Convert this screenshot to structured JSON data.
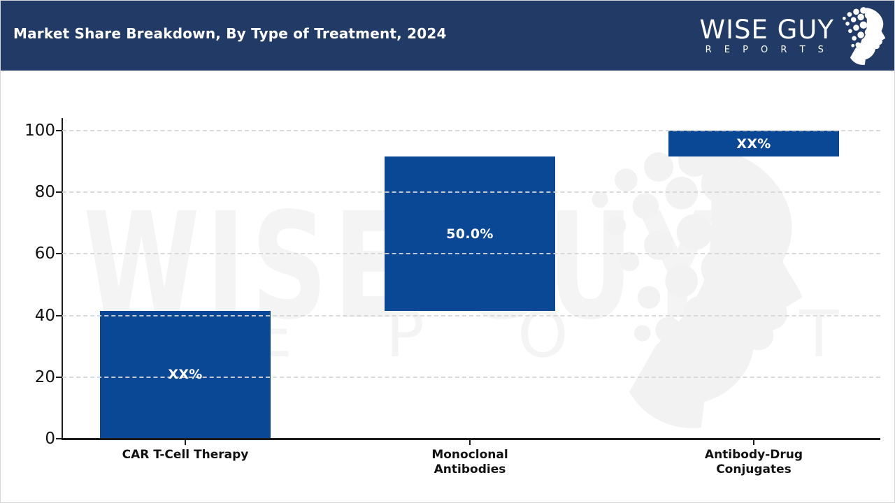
{
  "header": {
    "title": "Market Share Breakdown, By Type of Treatment, 2024",
    "background": "#213a66",
    "logo": {
      "name": "Wise Guy Reports",
      "line1": "WISE GUY",
      "line2": "R E P O R T S"
    }
  },
  "watermark": {
    "line1": "WISE GUY",
    "line2": "R E P O R T S"
  },
  "chart_data": {
    "type": "bar",
    "subtype": "waterfall",
    "title": "Market Share Breakdown, By Type of Treatment, 2024",
    "unit": "percent market share",
    "categories": [
      "CAR T-Cell Therapy",
      "Monoclonal Antibodies",
      "Antibody-Drug Conjugates"
    ],
    "category_label_lines": [
      [
        "CAR T-Cell Therapy"
      ],
      [
        "Monoclonal",
        "Antibodies"
      ],
      [
        "Antibody-Drug",
        "Conjugates"
      ]
    ],
    "segments": [
      {
        "category": "CAR T-Cell Therapy",
        "base": 0,
        "top": 41.5,
        "value_label": "XX%"
      },
      {
        "category": "Monoclonal Antibodies",
        "base": 41.5,
        "top": 91.5,
        "value_label": "50.0%"
      },
      {
        "category": "Antibody-Drug Conjugates",
        "base": 91.5,
        "top": 100,
        "value_label": "XX%"
      }
    ],
    "ylim": [
      0,
      100
    ],
    "yticks": [
      0,
      20,
      40,
      60,
      80,
      100
    ],
    "grid": "horizontal-dashed",
    "legend": "none",
    "colors": {
      "bar": "#0a4795",
      "bar_label": "#ffffff",
      "axis": "#1a1a1a",
      "gridline": "#d9d9d9",
      "tick_label": "#111111"
    }
  }
}
